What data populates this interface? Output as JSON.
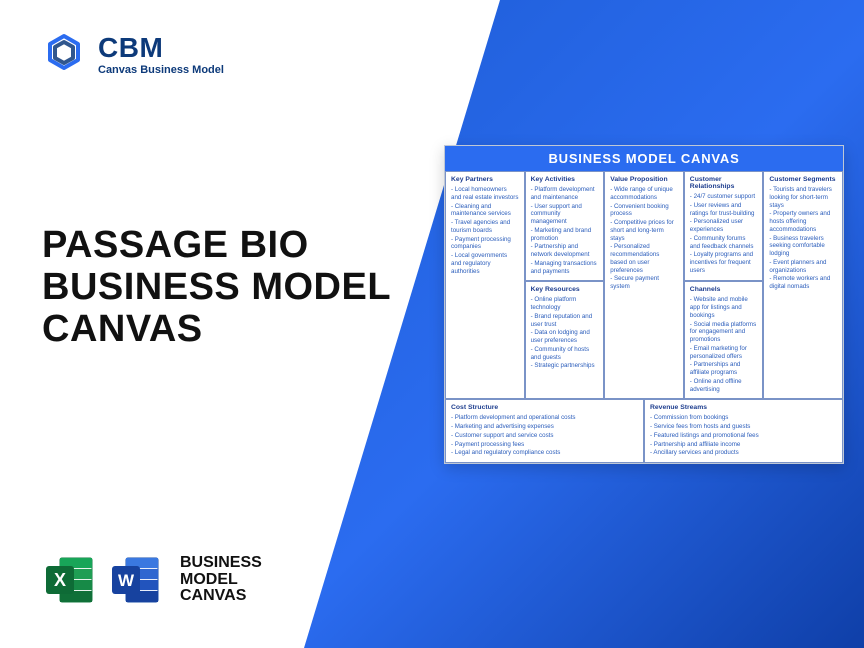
{
  "brand": {
    "name": "CBM",
    "tagline": "Canvas Business Model"
  },
  "title": {
    "line1": "PASSAGE BIO",
    "line2": "BUSINESS MODEL",
    "line3": "CANVAS"
  },
  "footer": {
    "line1": "BUSINESS",
    "line2": "MODEL",
    "line3": "CANVAS"
  },
  "colors": {
    "accent": "#2b6cf0",
    "dark": "#0d3a7a",
    "text": "#111"
  },
  "canvas": {
    "header": "BUSINESS MODEL CANVAS",
    "cells": {
      "kp": {
        "title": "Key Partners",
        "items": [
          "Local homeowners and real estate investors",
          "Cleaning and maintenance services",
          "Travel agencies and tourism boards",
          "Payment processing companies",
          "Local governments and regulatory authorities"
        ]
      },
      "ka": {
        "title": "Key Activities",
        "items": [
          "Platform development and maintenance",
          "User support and community management",
          "Marketing and brand promotion",
          "Partnership and network development",
          "Managing transactions and payments"
        ]
      },
      "kr": {
        "title": "Key Resources",
        "items": [
          "Online platform technology",
          "Brand reputation and user trust",
          "Data on lodging and user preferences",
          "Community of hosts and guests",
          "Strategic partnerships"
        ]
      },
      "vp": {
        "title": "Value Proposition",
        "items": [
          "Wide range of unique accommodations",
          "Convenient booking process",
          "Competitive prices for short and long-term stays",
          "Personalized recommendations based on user preferences",
          "Secure payment system"
        ]
      },
      "cr": {
        "title": "Customer Relationships",
        "items": [
          "24/7 customer support",
          "User reviews and ratings for trust-building",
          "Personalized user experiences",
          "Community forums and feedback channels",
          "Loyalty programs and incentives for frequent users"
        ]
      },
      "ch": {
        "title": "Channels",
        "items": [
          "Website and mobile app for listings and bookings",
          "Social media platforms for engagement and promotions",
          "Email marketing for personalized offers",
          "Partnerships and affiliate programs",
          "Online and offline advertising"
        ]
      },
      "cs": {
        "title": "Customer Segments",
        "items": [
          "Tourists and travelers looking for short-term stays",
          "Property owners and hosts offering accommodations",
          "Business travelers seeking comfortable lodging",
          "Event planners and organizations",
          "Remote workers and digital nomads"
        ]
      },
      "cost": {
        "title": "Cost Structure",
        "items": [
          "Platform development and operational costs",
          "Marketing and advertising expenses",
          "Customer support and service costs",
          "Payment processing fees",
          "Legal and regulatory compliance costs"
        ]
      },
      "rev": {
        "title": "Revenue Streams",
        "items": [
          "Commission from bookings",
          "Service fees from hosts and guests",
          "Featured listings and promotional fees",
          "Partnership and affiliate income",
          "Ancillary services and products"
        ]
      }
    }
  }
}
